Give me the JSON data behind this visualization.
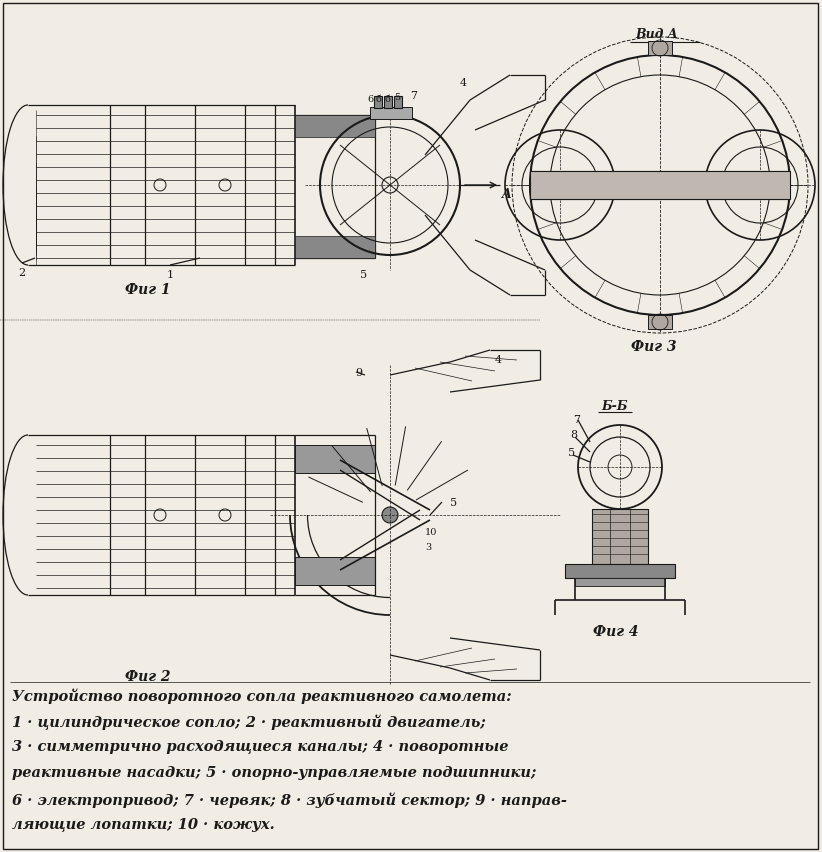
{
  "bg_color": "#e8e4dc",
  "paper_color": "#f2ede4",
  "line_color": "#1a1a1a",
  "fig_width": 8.22,
  "fig_height": 8.52,
  "caption_lines": [
    "Устройство поворотного сопла реактивного самолета:",
    "1 · цилиндрическое сопло; 2 · реактивный двигатель;",
    "3 · симметрично расходящиеся каналы; 4 · поворотные",
    "реактивные насадки; 5 · опорно-управляемые подшипники;",
    "6 · электропривод; 7 · червяк; 8 · зубчатый сектор; 9 · направ-",
    "ляющие лопатки; 10 · кожух."
  ],
  "fig1_label": "Фиг 1",
  "fig2_label": "Фиг 2",
  "fig3_label": "Фиг 3",
  "fig4_label": "Фиг 4",
  "vid_a_label": "Вид A"
}
